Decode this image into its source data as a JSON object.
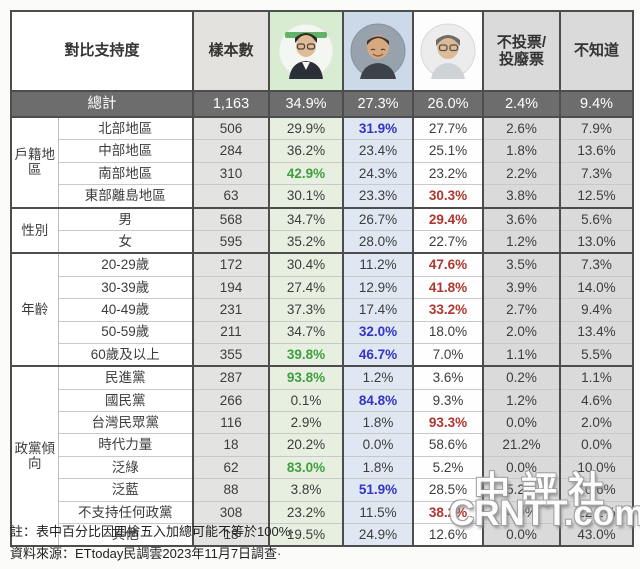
{
  "watermark": {
    "line1": "中評社",
    "line2": "CRNTT.com"
  },
  "chart_data": {
    "type": "table",
    "title": "對比支持度",
    "columns": [
      {
        "label": "對比支持度"
      },
      {
        "label": "樣本數"
      },
      {
        "icon": "lai-ching-te-photo",
        "bg": "#d8ecd1"
      },
      {
        "icon": "hou-yu-ih-photo",
        "bg": "#ccd9e9"
      },
      {
        "icon": "ko-wen-je-photo",
        "bg": "#fdfdfd"
      },
      {
        "label": "不投票/\n投廢票"
      },
      {
        "label": "不知道"
      }
    ],
    "total": {
      "label": "總計",
      "sample": "1,163",
      "values": [
        "34.9%",
        "27.3%",
        "26.0%",
        "2.4%",
        "9.4%"
      ]
    },
    "groups": [
      {
        "label": "戶籍地區",
        "rows": [
          {
            "category": "北部地區",
            "sample": "506",
            "values": [
              {
                "v": "29.9%"
              },
              {
                "v": "31.9%",
                "hl": "blue"
              },
              {
                "v": "27.7%"
              },
              {
                "v": "2.6%"
              },
              {
                "v": "7.9%"
              }
            ]
          },
          {
            "category": "中部地區",
            "sample": "284",
            "values": [
              {
                "v": "36.2%"
              },
              {
                "v": "23.4%"
              },
              {
                "v": "25.1%"
              },
              {
                "v": "1.8%"
              },
              {
                "v": "13.6%"
              }
            ]
          },
          {
            "category": "南部地區",
            "sample": "310",
            "values": [
              {
                "v": "42.9%",
                "hl": "green"
              },
              {
                "v": "24.3%"
              },
              {
                "v": "23.2%"
              },
              {
                "v": "2.2%"
              },
              {
                "v": "7.3%"
              }
            ]
          },
          {
            "category": "東部離島地區",
            "sample": "63",
            "values": [
              {
                "v": "30.1%"
              },
              {
                "v": "23.3%"
              },
              {
                "v": "30.3%",
                "hl": "red"
              },
              {
                "v": "3.8%"
              },
              {
                "v": "12.5%"
              }
            ]
          }
        ]
      },
      {
        "label": "性別",
        "rows": [
          {
            "category": "男",
            "sample": "568",
            "values": [
              {
                "v": "34.7%"
              },
              {
                "v": "26.7%"
              },
              {
                "v": "29.4%",
                "hl": "red"
              },
              {
                "v": "3.6%"
              },
              {
                "v": "5.6%"
              }
            ]
          },
          {
            "category": "女",
            "sample": "595",
            "values": [
              {
                "v": "35.2%"
              },
              {
                "v": "28.0%"
              },
              {
                "v": "22.7%"
              },
              {
                "v": "1.2%"
              },
              {
                "v": "13.0%"
              }
            ]
          }
        ]
      },
      {
        "label": "年齡",
        "rows": [
          {
            "category": "20-29歲",
            "sample": "172",
            "values": [
              {
                "v": "30.4%"
              },
              {
                "v": "11.2%"
              },
              {
                "v": "47.6%",
                "hl": "red"
              },
              {
                "v": "3.5%"
              },
              {
                "v": "7.3%"
              }
            ]
          },
          {
            "category": "30-39歲",
            "sample": "194",
            "values": [
              {
                "v": "27.4%"
              },
              {
                "v": "12.9%"
              },
              {
                "v": "41.8%",
                "hl": "red"
              },
              {
                "v": "3.9%"
              },
              {
                "v": "14.0%"
              }
            ]
          },
          {
            "category": "40-49歲",
            "sample": "231",
            "values": [
              {
                "v": "37.3%"
              },
              {
                "v": "17.4%"
              },
              {
                "v": "33.2%",
                "hl": "red"
              },
              {
                "v": "2.7%"
              },
              {
                "v": "9.4%"
              }
            ]
          },
          {
            "category": "50-59歲",
            "sample": "211",
            "values": [
              {
                "v": "34.7%"
              },
              {
                "v": "32.0%",
                "hl": "blue"
              },
              {
                "v": "18.0%"
              },
              {
                "v": "2.0%"
              },
              {
                "v": "13.4%"
              }
            ]
          },
          {
            "category": "60歲及以上",
            "sample": "355",
            "values": [
              {
                "v": "39.8%",
                "hl": "green"
              },
              {
                "v": "46.7%",
                "hl": "blue"
              },
              {
                "v": "7.0%"
              },
              {
                "v": "1.1%"
              },
              {
                "v": "5.5%"
              }
            ]
          }
        ]
      },
      {
        "label": "政黨傾向",
        "rows": [
          {
            "category": "民進黨",
            "sample": "287",
            "values": [
              {
                "v": "93.8%",
                "hl": "green"
              },
              {
                "v": "1.2%"
              },
              {
                "v": "3.6%"
              },
              {
                "v": "0.2%"
              },
              {
                "v": "1.1%"
              }
            ]
          },
          {
            "category": "國民黨",
            "sample": "266",
            "values": [
              {
                "v": "0.1%"
              },
              {
                "v": "84.8%",
                "hl": "blue"
              },
              {
                "v": "9.3%"
              },
              {
                "v": "1.2%"
              },
              {
                "v": "4.6%"
              }
            ]
          },
          {
            "category": "台灣民眾黨",
            "sample": "116",
            "values": [
              {
                "v": "2.9%"
              },
              {
                "v": "1.8%"
              },
              {
                "v": "93.3%",
                "hl": "red"
              },
              {
                "v": "0.0%"
              },
              {
                "v": "2.0%"
              }
            ]
          },
          {
            "category": "時代力量",
            "sample": "18",
            "values": [
              {
                "v": "20.2%"
              },
              {
                "v": "0.0%"
              },
              {
                "v": "58.6%"
              },
              {
                "v": "21.2%"
              },
              {
                "v": "0.0%"
              }
            ]
          },
          {
            "category": "泛綠",
            "sample": "62",
            "values": [
              {
                "v": "83.0%",
                "hl": "green"
              },
              {
                "v": "1.8%"
              },
              {
                "v": "5.2%"
              },
              {
                "v": "0.0%"
              },
              {
                "v": "10.0%"
              }
            ]
          },
          {
            "category": "泛藍",
            "sample": "88",
            "values": [
              {
                "v": "3.8%"
              },
              {
                "v": "51.9%",
                "hl": "blue"
              },
              {
                "v": "28.5%"
              },
              {
                "v": "5.2%"
              },
              {
                "v": "10.6%"
              }
            ]
          },
          {
            "category": "不支持任何政黨",
            "sample": "308",
            "values": [
              {
                "v": "23.2%"
              },
              {
                "v": "11.5%"
              },
              {
                "v": "38.2%",
                "hl": "red"
              },
              {
                "v": "4.9%"
              },
              {
                "v": "22.2%"
              }
            ]
          },
          {
            "category": "其他",
            "sample": "18",
            "values": [
              {
                "v": "19.5%"
              },
              {
                "v": "24.9%"
              },
              {
                "v": "12.6%"
              },
              {
                "v": "0.0%"
              },
              {
                "v": "43.0%"
              }
            ]
          }
        ]
      }
    ],
    "notes": [
      "註：表中百分比因四捨五入加總可能不等於100%·",
      "資料來源：ETtoday民調雲2023年11月7日調查·"
    ],
    "colors": {
      "green": "#3f9e3f",
      "blue": "#3434c4",
      "red": "#b0352f",
      "total_row_bg": "#6d6d6d",
      "lai_col_bg": "#e7f0e0",
      "hou_col_bg": "#dfe8f2",
      "ko_col_bg": "#fefefe",
      "muted_col_bg": "#dadada",
      "sample_col_bg": "#e3e3e2"
    }
  }
}
